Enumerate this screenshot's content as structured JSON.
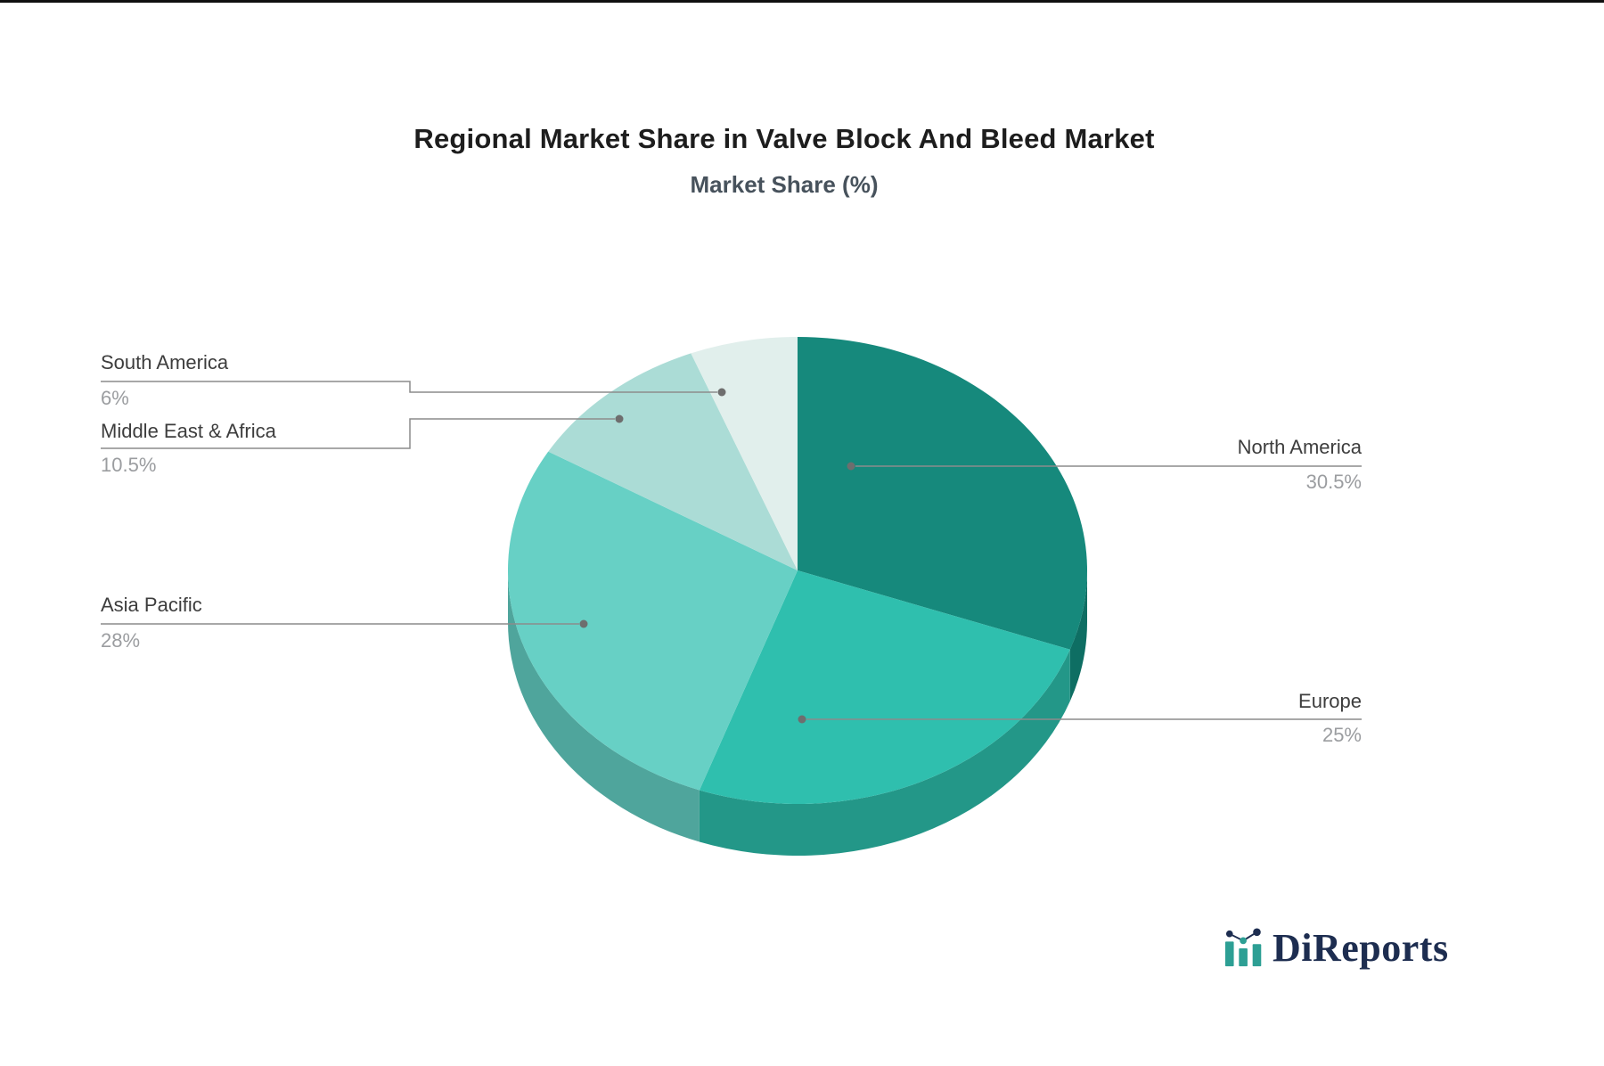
{
  "page": {
    "title": "Regional Market Share in Valve Block And Bleed Market",
    "subtitle": "Market Share (%)"
  },
  "logo": {
    "text": "DiReports",
    "icon": "bar-chart-icon",
    "icon_color": "#2d9f94",
    "text_color": "#1d2d50"
  },
  "chart_data": {
    "type": "pie",
    "title": "Regional Market Share in Valve Block And Bleed Market",
    "subtitle": "Market Share (%)",
    "unit": "%",
    "effect": "3d",
    "start_angle_deg": 0,
    "direction": "clockwise",
    "legend_position": "callout-labels",
    "slices": [
      {
        "label": "North America",
        "value": 30.5,
        "display": "30.5%",
        "color": "#16897c",
        "side_color": "#0e6e63"
      },
      {
        "label": "Europe",
        "value": 25,
        "display": "25%",
        "color": "#2fbfae",
        "side_color": "#239788"
      },
      {
        "label": "Asia Pacific",
        "value": 28,
        "display": "28%",
        "color": "#67d0c5",
        "side_color": "#4fa59c"
      },
      {
        "label": "Middle East & Africa",
        "value": 10.5,
        "display": "10.5%",
        "color": "#abdcd6",
        "side_color": "#8ab5af"
      },
      {
        "label": "South America",
        "value": 6,
        "display": "6%",
        "color": "#e1efec",
        "side_color": "#b6c4c1"
      }
    ],
    "label_text_color": "#3d3d3d",
    "value_text_color": "#9b9da0",
    "leader_line_color": "#8c8c8c",
    "leader_dot_color": "#6e6e6e"
  }
}
